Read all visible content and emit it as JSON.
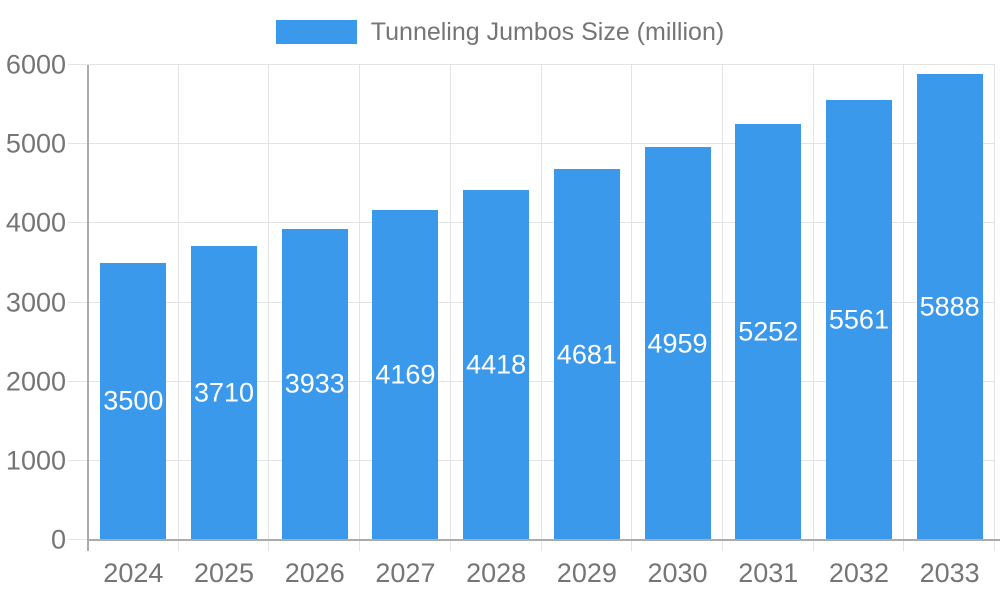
{
  "chart_data": {
    "type": "bar",
    "title": "Tunneling Jumbos Size (million)",
    "categories": [
      "2024",
      "2025",
      "2026",
      "2027",
      "2028",
      "2029",
      "2030",
      "2031",
      "2032",
      "2033"
    ],
    "values": [
      3500,
      3710,
      3933,
      4169,
      4418,
      4681,
      4959,
      5252,
      5561,
      5888
    ],
    "bar_labels": [
      "3500",
      "3710",
      "3933",
      "4169",
      "4418",
      "4681",
      "4959",
      "5252",
      "5561",
      "5888"
    ],
    "legend": {
      "label": "Tunneling Jumbos Size (million)",
      "position": "top"
    },
    "xlabel": "",
    "ylabel": "",
    "ylim": [
      0,
      6000
    ],
    "yticks": [
      0,
      1000,
      2000,
      3000,
      4000,
      5000,
      6000
    ],
    "grid": true
  },
  "colors": {
    "bar": "#3B99EC",
    "grid": "#E3E3E3",
    "axis": "#ABABAB",
    "axis_text": "#757575",
    "bar_label_text": "#FFFFFF",
    "background": "#FFFFFF"
  }
}
